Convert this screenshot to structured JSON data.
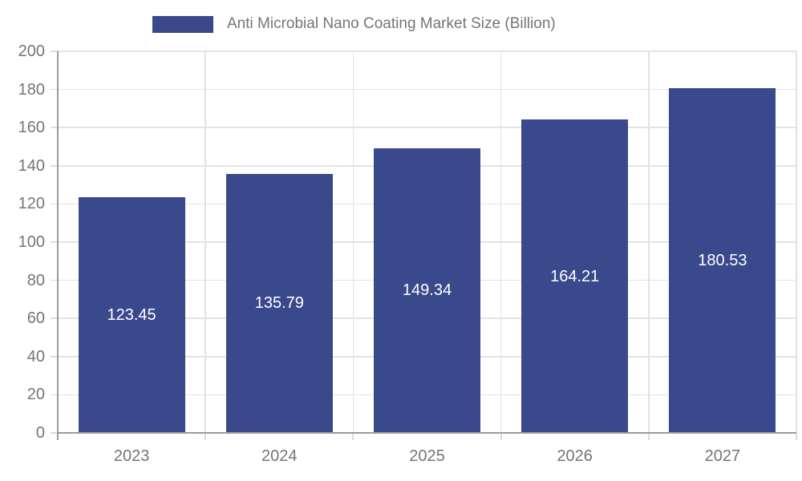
{
  "chart_data": {
    "type": "bar",
    "title": "Anti Microbial Nano Coating Market Size (Billion)",
    "categories": [
      "2023",
      "2024",
      "2025",
      "2026",
      "2027"
    ],
    "values": [
      123.45,
      135.79,
      149.34,
      164.21,
      180.53
    ],
    "value_labels": [
      "123.45",
      "135.79",
      "149.34",
      "164.21",
      "180.53"
    ],
    "xlabel": "",
    "ylabel": "",
    "ylim": [
      0,
      200
    ],
    "ytick_step": 20,
    "ytick_labels": [
      "0",
      "20",
      "40",
      "60",
      "80",
      "100",
      "120",
      "140",
      "160",
      "180",
      "200"
    ],
    "grid": true,
    "legend_position": "top",
    "colors": {
      "bar": "#39498B",
      "value_label": "#FFFFFF",
      "axis_text": "#757575",
      "legend_text": "#757575",
      "gridline": "#E3E3E6",
      "axis_line": "#9B9B9B",
      "tick": "#DCDCDC"
    }
  }
}
